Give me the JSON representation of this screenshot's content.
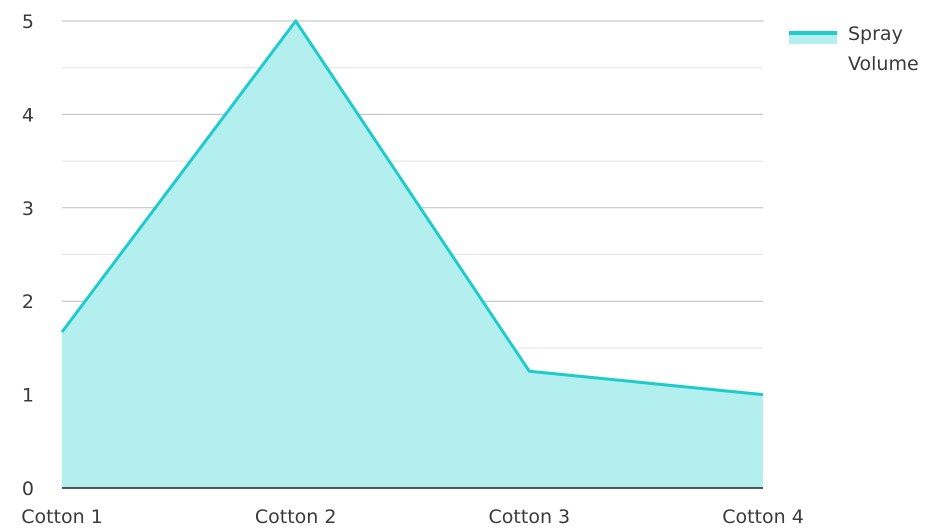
{
  "chart_data": {
    "type": "area",
    "categories": [
      "Cotton 1",
      "Cotton 2",
      "Cotton 3",
      "Cotton 4"
    ],
    "series": [
      {
        "name": "Spray Volume",
        "values": [
          1.67,
          5,
          1.25,
          1
        ]
      }
    ],
    "ylim": [
      0,
      5
    ],
    "yticks": [
      0,
      1,
      2,
      3,
      4,
      5
    ],
    "grid": true,
    "legend": {
      "position": "top-right",
      "lines": [
        "Spray",
        "Volume"
      ]
    },
    "colors": {
      "line": "#1ecbcb",
      "fill": "#b3efee",
      "major_grid": "#bdbdbd",
      "minor_grid": "#e3e3e3",
      "axis": "#222222"
    }
  }
}
